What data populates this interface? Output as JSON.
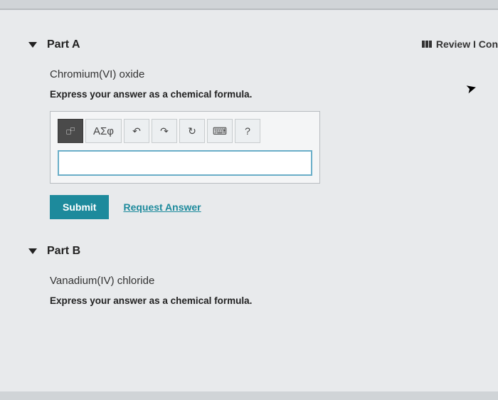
{
  "review": {
    "label": "Review I Con"
  },
  "partA": {
    "title": "Part A",
    "compound": "Chromium(VI) oxide",
    "instruction": "Express your answer as a chemical formula.",
    "toolbar": {
      "template": "▢⇌",
      "greek": "ΑΣφ",
      "undo": "↶",
      "redo": "↷",
      "reset": "↻",
      "keyboard": "⌨",
      "help": "?"
    },
    "input_value": "",
    "submit": "Submit",
    "request": "Request Answer"
  },
  "partB": {
    "title": "Part B",
    "compound": "Vanadium(IV) chloride",
    "instruction": "Express your answer as a chemical formula."
  },
  "colors": {
    "page_bg": "#d0d4d7",
    "panel_bg": "#e8eaec",
    "accent": "#1d8a9c",
    "input_border": "#6aaec8",
    "toolbar_dark": "#4a4a4a"
  }
}
